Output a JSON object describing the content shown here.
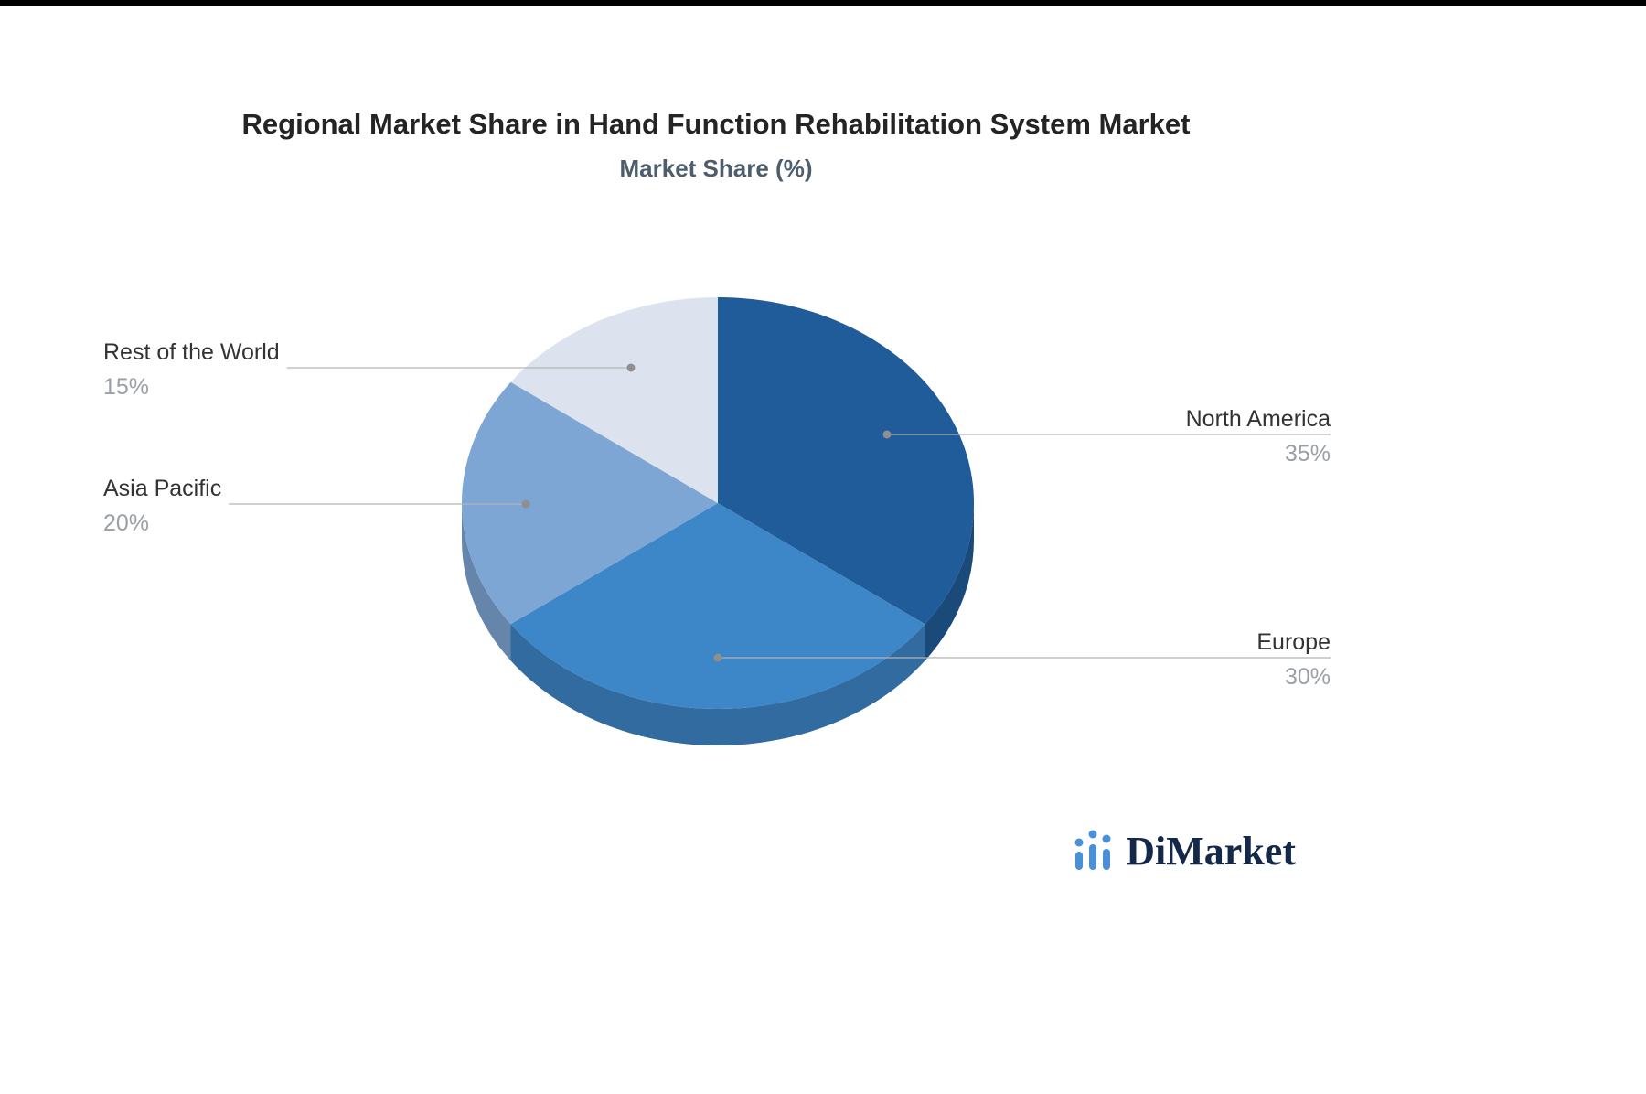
{
  "title": "Regional Market Share in Hand Function Rehabilitation System Market",
  "subtitle": "Market Share (%)",
  "brand": {
    "name": "DiMarket",
    "icon": "bar-chart-logo-icon",
    "text_color": "#14284a",
    "icon_color": "#4a90d9"
  },
  "chart_data": {
    "type": "pie",
    "effect": "3d",
    "title": "Regional Market Share in Hand Function Rehabilitation System Market",
    "subtitle": "Market Share (%)",
    "unit": "%",
    "start_angle_deg": 0,
    "direction": "clockwise",
    "legend_position": "callout-labels",
    "slices": [
      {
        "label": "North America",
        "value": 35,
        "display": "35%",
        "color": "#1f5c99"
      },
      {
        "label": "Europe",
        "value": 30,
        "display": "30%",
        "color": "#3d86c7"
      },
      {
        "label": "Asia Pacific",
        "value": 20,
        "display": "20%",
        "color": "#7ea6d5"
      },
      {
        "label": "Rest of the World",
        "value": 15,
        "display": "15%",
        "color": "#dde3ee"
      }
    ],
    "label_color": "#333333",
    "value_color": "#9aa0a5",
    "leader_line_color": "#b3b3b3"
  }
}
